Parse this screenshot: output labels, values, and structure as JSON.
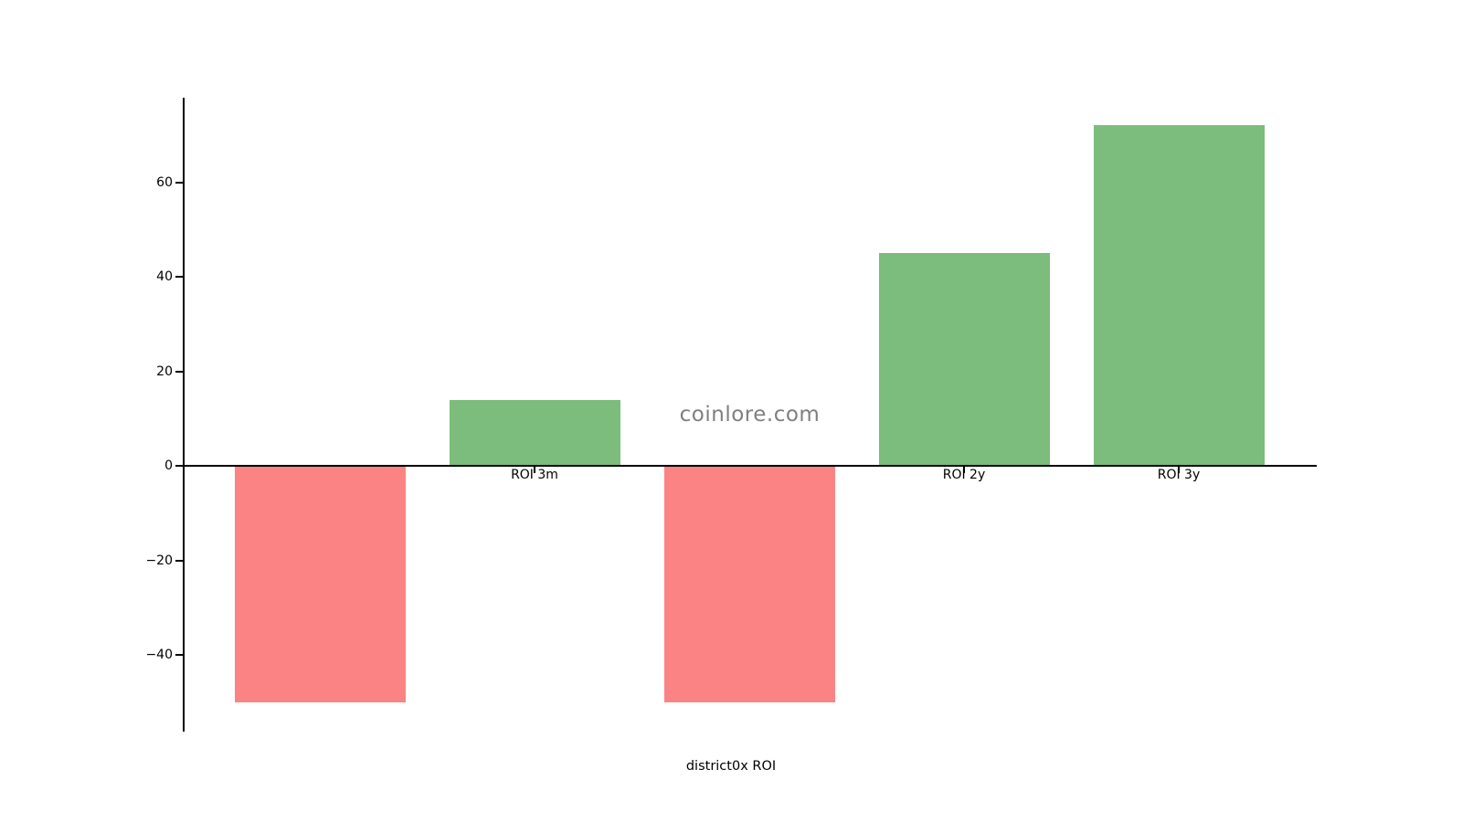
{
  "page": {
    "background": "#ffffff"
  },
  "watermark": {
    "text": "coinlore.com",
    "color": "#7f7f7f"
  },
  "chart_data": {
    "type": "bar",
    "title": "district0x ROI",
    "xlabel": "",
    "ylabel": "",
    "categories": [
      "",
      "ROI 3m",
      "",
      "ROI 2y",
      "ROI 3y"
    ],
    "values": [
      -50,
      14,
      -50,
      45,
      72
    ],
    "y_ticks": [
      {
        "value": 60,
        "label": "60"
      },
      {
        "value": 40,
        "label": "40"
      },
      {
        "value": 20,
        "label": "20"
      },
      {
        "value": 0,
        "label": "0"
      },
      {
        "value": -20,
        "label": "−20"
      },
      {
        "value": -40,
        "label": "−40"
      }
    ],
    "ylim": [
      -56,
      78
    ],
    "grid": false,
    "legend": "none",
    "colors": {
      "positive": "#7cbc7c",
      "negative": "#fc8383",
      "axis": "#000000",
      "tick_text": "#000000"
    },
    "notes": "Bars with empty category labels have their tick labels hidden behind the negative bars."
  }
}
